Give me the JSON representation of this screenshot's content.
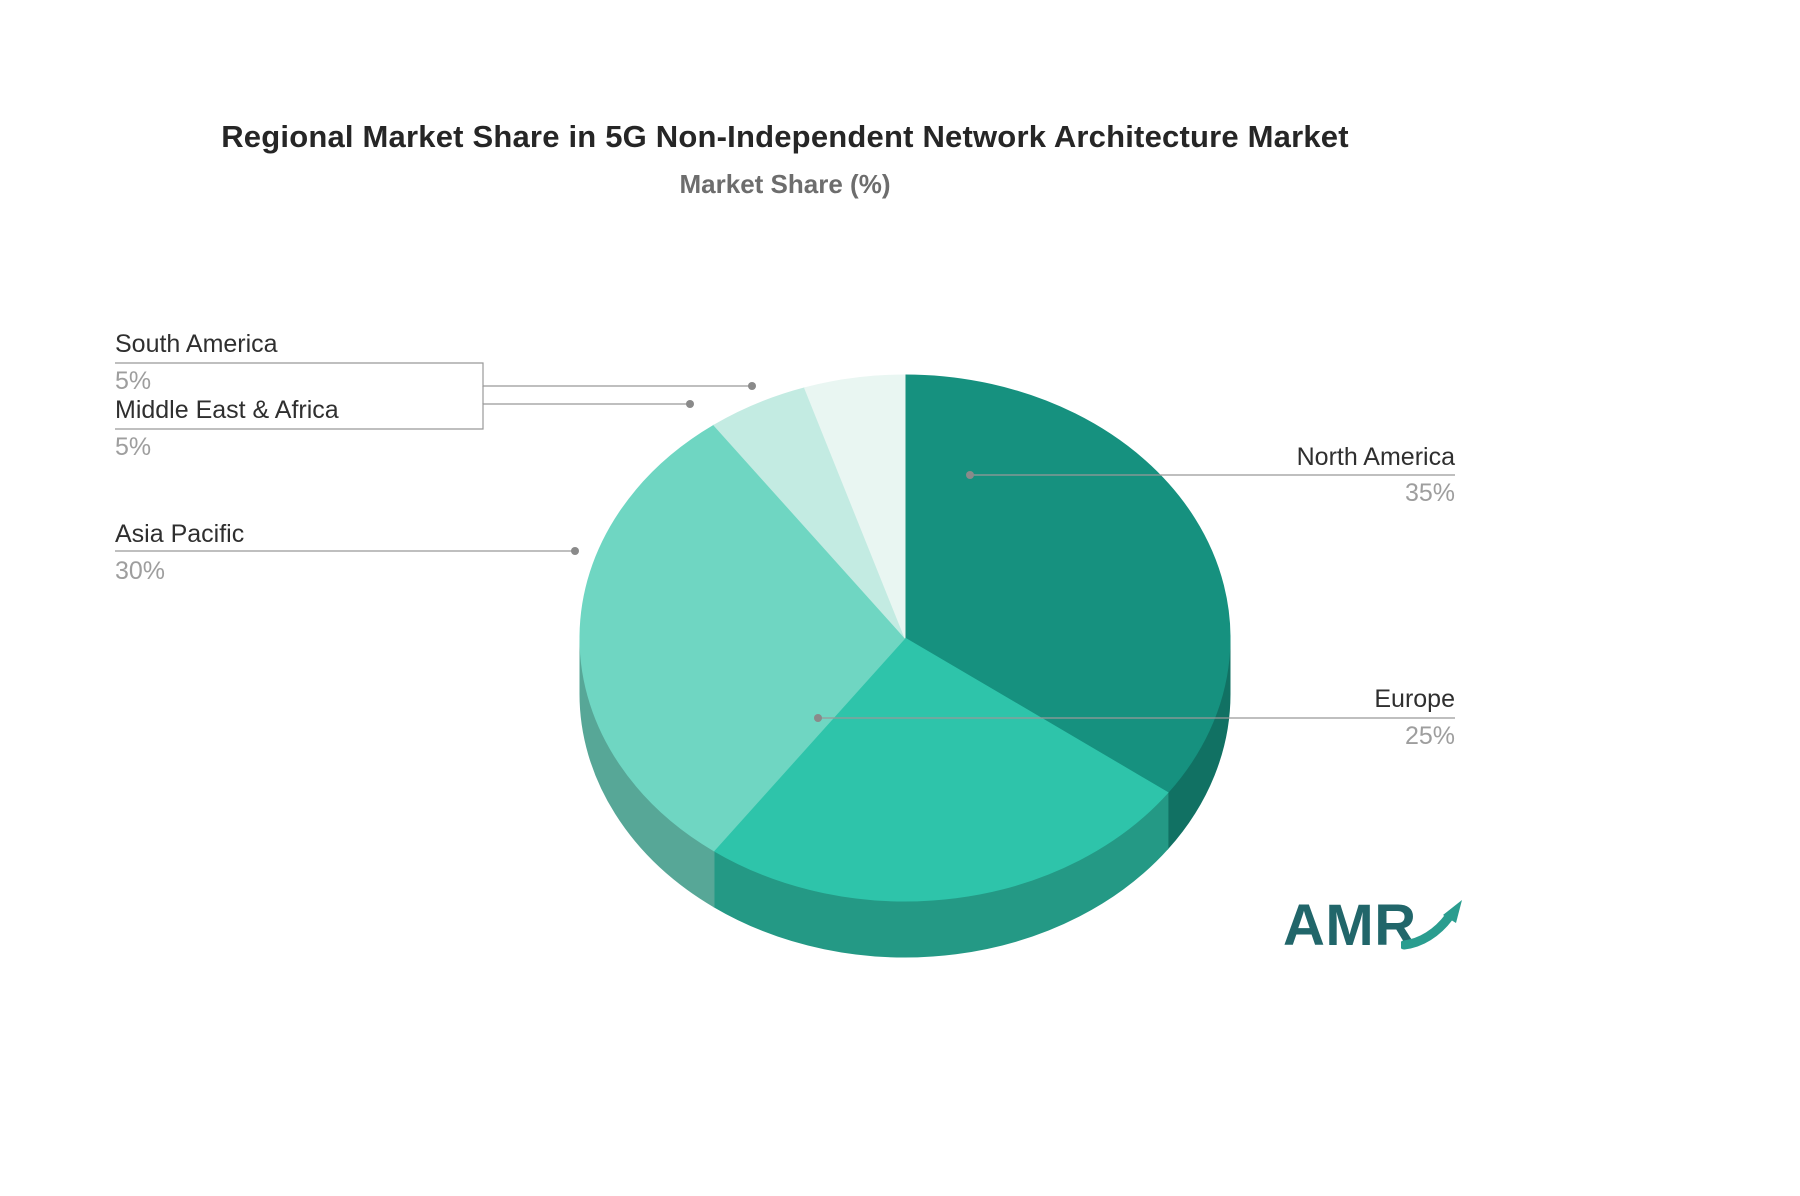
{
  "title": "Regional Market Share in 5G Non-Independent Network Architecture Market",
  "subtitle": "Market Share (%)",
  "logo_text": "AMR",
  "colors": {
    "title": "#262626",
    "subtitle": "#6d6d6d",
    "leader_line": "#999999",
    "logo_text": "#21666a",
    "logo_arrow": "#2a9d8f"
  },
  "chart_data": {
    "type": "pie",
    "style": "3d",
    "title": "Regional Market Share in 5G Non-Independent Network Architecture Market",
    "subtitle": "Market Share (%)",
    "unit": "%",
    "direction": "clockwise",
    "start_angle_deg": 0,
    "legend_position": "none",
    "slices": [
      {
        "label": "North America",
        "value": 35,
        "display_value": "35%",
        "color": "#16917f",
        "label_side": "right"
      },
      {
        "label": "Europe",
        "value": 25,
        "display_value": "25%",
        "color": "#2ec4aa",
        "label_side": "right"
      },
      {
        "label": "Asia Pacific",
        "value": 30,
        "display_value": "30%",
        "color": "#6fd6c2",
        "label_side": "left"
      },
      {
        "label": "Middle East & Africa",
        "value": 5,
        "display_value": "5%",
        "color": "#c3ebe2",
        "label_side": "left"
      },
      {
        "label": "South America",
        "value": 5,
        "display_value": "5%",
        "color": "#e9f6f2",
        "label_side": "left"
      }
    ]
  }
}
